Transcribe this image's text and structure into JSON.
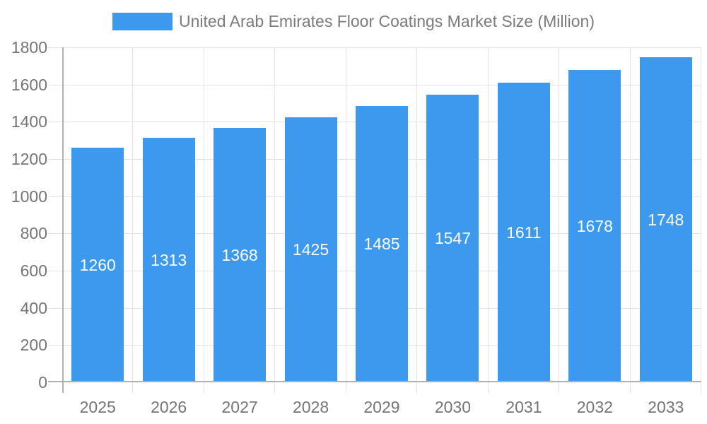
{
  "legend": {
    "label": "United Arab Emirates Floor Coatings Market Size (Million)"
  },
  "colors": {
    "bar": "#3C99EE",
    "axis": "#b0b0b0",
    "grid": "#e3e3e3",
    "tick_text": "#757575",
    "legend_text": "#7b7b7b",
    "value_label_text": "#ffffff",
    "background": "#ffffff"
  },
  "chart_data": {
    "type": "bar",
    "title": "United Arab Emirates Floor Coatings Market Size (Million)",
    "categories": [
      "2025",
      "2026",
      "2027",
      "2028",
      "2029",
      "2030",
      "2031",
      "2032",
      "2033"
    ],
    "values": [
      1260,
      1313,
      1368,
      1425,
      1485,
      1547,
      1611,
      1678,
      1748
    ],
    "value_labels": [
      "1260",
      "1313",
      "1368",
      "1425",
      "1485",
      "1547",
      "1611",
      "1678",
      "1748"
    ],
    "xlabel": "",
    "ylabel": "",
    "ylim": [
      0,
      1800
    ],
    "ytick_step": 200,
    "yticks": [
      "0",
      "200",
      "400",
      "600",
      "800",
      "1000",
      "1200",
      "1400",
      "1600",
      "1800"
    ],
    "grid": true,
    "legend_position": "top",
    "value_label_position": "inside-center"
  }
}
